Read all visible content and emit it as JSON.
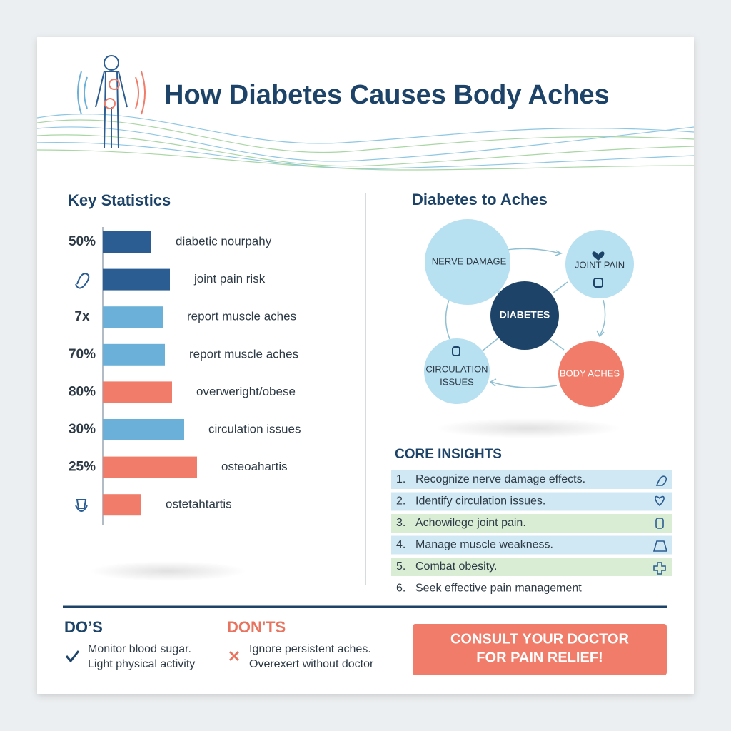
{
  "header": {
    "title": "How Diabetes Causes Body Aches"
  },
  "chart_data": {
    "type": "bar",
    "orientation": "horizontal",
    "title": "Key Statistics",
    "categories": [
      "50%",
      null,
      "7x",
      "70%",
      "80%",
      "30%",
      "25%",
      null
    ],
    "descriptions": [
      "diabetic nourpahy",
      "joint pain risk",
      "report muscle aches",
      "report muscle aches",
      "overweright/obese",
      "circulation issues",
      "osteoahartis",
      "ostetahtartis"
    ],
    "values": [
      68,
      94,
      84,
      87,
      97,
      114,
      132,
      54
    ],
    "colors": [
      "#2b5d92",
      "#2b5d92",
      "#6bb0d8",
      "#6bb0d8",
      "#f07c69",
      "#6bb0d8",
      "#f07c69",
      "#f07c69"
    ],
    "xlim": [
      0,
      140
    ]
  },
  "diagram": {
    "title": "Diabetes to Aches",
    "nodes": [
      {
        "lines": [
          "NERVE DAMAGE"
        ]
      },
      {
        "lines": [
          "JOINT PAIN"
        ]
      },
      {
        "lines": [
          "DIABETES"
        ]
      },
      {
        "lines": [
          "CIRCULATION",
          "ISSUES"
        ]
      },
      {
        "lines": [
          "BODY ACHES"
        ]
      }
    ]
  },
  "core_insights": {
    "title": "CORE INSIGHTS",
    "items": [
      {
        "number": "1.",
        "text": "Recognize nerve damage effects."
      },
      {
        "number": "2.",
        "text": "Identify circulation issues."
      },
      {
        "number": "3.",
        "text": "Achowilege joint pain."
      },
      {
        "number": "4.",
        "text": "Manage muscle weakness."
      },
      {
        "number": "5.",
        "text": "Combat obesity."
      },
      {
        "number": "6.",
        "text": "Seek effective pain management"
      }
    ]
  },
  "dos": {
    "title": "DO’S",
    "items": [
      "Monitor blood sugar.",
      "Light physical activity"
    ]
  },
  "donts": {
    "title": "DON'TS",
    "items": [
      "Ignore persistent aches.",
      "Overexert without doctor"
    ]
  },
  "cta": {
    "lines": [
      "CONSULT YOUR DOCTOR",
      "FOR PAIN RELIEF!"
    ]
  }
}
